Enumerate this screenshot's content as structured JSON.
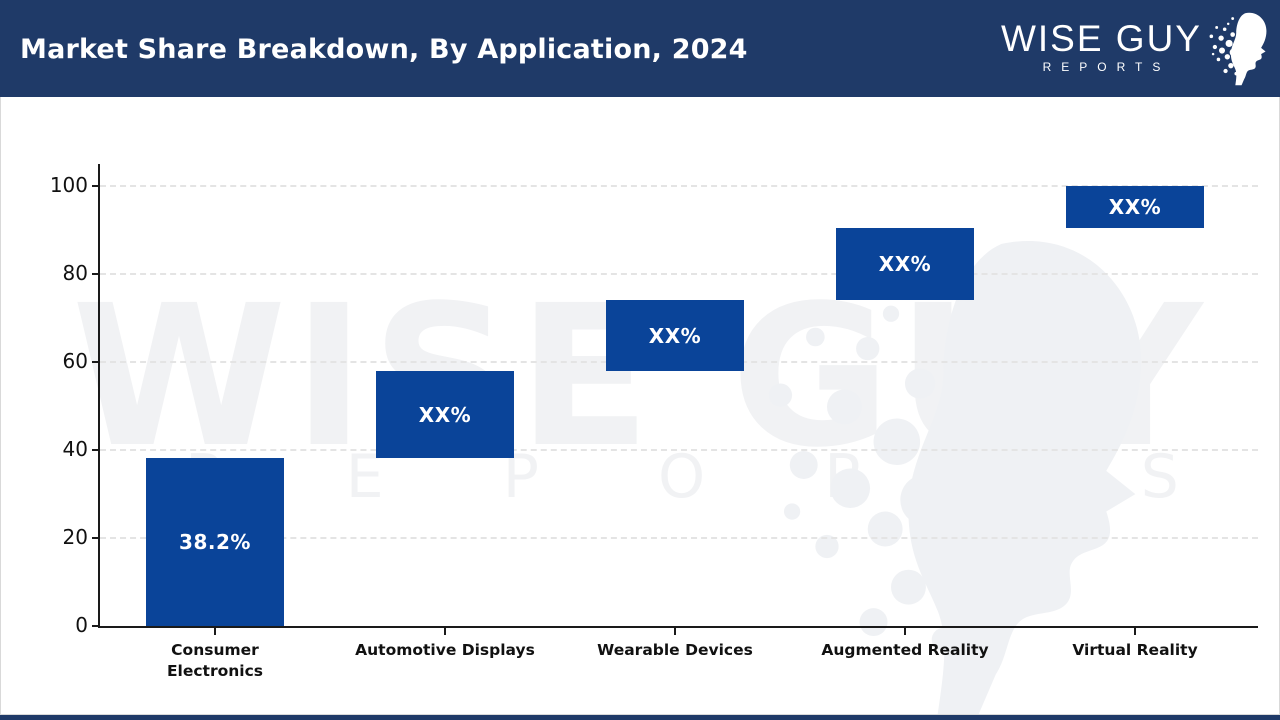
{
  "header": {
    "title": "Market Share Breakdown, By Application, 2024",
    "logo_line1": "WISE GUY",
    "logo_line2": "REPORTS"
  },
  "watermark": {
    "line1": "WISE GUY",
    "line2": "R E P O R T S"
  },
  "chart_data": {
    "type": "bar",
    "variant": "waterfall",
    "title": "Market Share Breakdown, By Application, 2024",
    "categories": [
      "Consumer Electronics",
      "Automotive Displays",
      "Wearable Devices",
      "Augmented Reality",
      "Virtual Reality"
    ],
    "segments": [
      {
        "category": "Consumer Electronics",
        "start": 0,
        "end": 38.2,
        "label": "38.2%"
      },
      {
        "category": "Automotive Displays",
        "start": 38.2,
        "end": 57.9,
        "label": "XX%"
      },
      {
        "category": "Wearable Devices",
        "start": 57.9,
        "end": 74.0,
        "label": "XX%"
      },
      {
        "category": "Augmented Reality",
        "start": 74.0,
        "end": 90.5,
        "label": "XX%"
      },
      {
        "category": "Virtual Reality",
        "start": 90.5,
        "end": 100,
        "label": "XX%"
      }
    ],
    "yticks": [
      0,
      20,
      40,
      60,
      80,
      100
    ],
    "ylim": [
      0,
      105
    ],
    "xlabel": "",
    "ylabel": "",
    "legend": "none",
    "grid": "horizontal-dashed"
  },
  "colors": {
    "header_bg": "#1f3a68",
    "bar": "#0a4499",
    "grid": "#e4e4e4",
    "axis": "#1a1a1a",
    "watermark": "#f1f2f4"
  }
}
